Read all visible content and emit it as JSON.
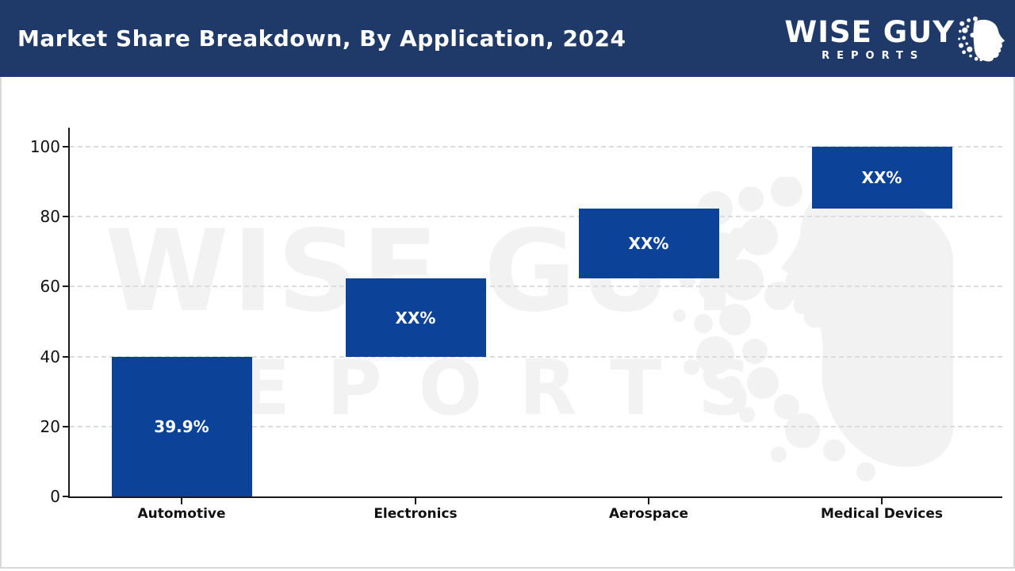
{
  "header": {
    "title": "Market Share Breakdown, By Application, 2024",
    "logo": {
      "line1": "WISE GUY",
      "line2": "REPORTS"
    }
  },
  "watermark": {
    "line1": "WISE GUY",
    "line2": "REPORTS"
  },
  "colors": {
    "header_bg": "#1f3a68",
    "bar": "#0d4299",
    "grid": "#dcdcdc",
    "axis": "#1a1a1a",
    "text": "#111111",
    "watermark": "#f2f2f3",
    "border": "#d9d9d9"
  },
  "chart_data": {
    "type": "bar",
    "subtype": "waterfall",
    "title": "Market Share Breakdown, By Application, 2024",
    "categories": [
      "Automotive",
      "Electronics",
      "Aerospace",
      "Medical Devices"
    ],
    "segments": [
      {
        "category": "Automotive",
        "start": 0,
        "end": 39.9,
        "label": "39.9%"
      },
      {
        "category": "Electronics",
        "start": 39.9,
        "end": 62.3,
        "label": "XX%"
      },
      {
        "category": "Aerospace",
        "start": 62.3,
        "end": 82.2,
        "label": "XX%"
      },
      {
        "category": "Medical Devices",
        "start": 82.2,
        "end": 100,
        "label": "XX%"
      }
    ],
    "yticks": [
      0,
      20,
      40,
      60,
      80,
      100
    ],
    "ylim": [
      0,
      105
    ],
    "xlabel": "",
    "ylabel": "",
    "grid": "dashed-horizontal",
    "legend": "none"
  }
}
